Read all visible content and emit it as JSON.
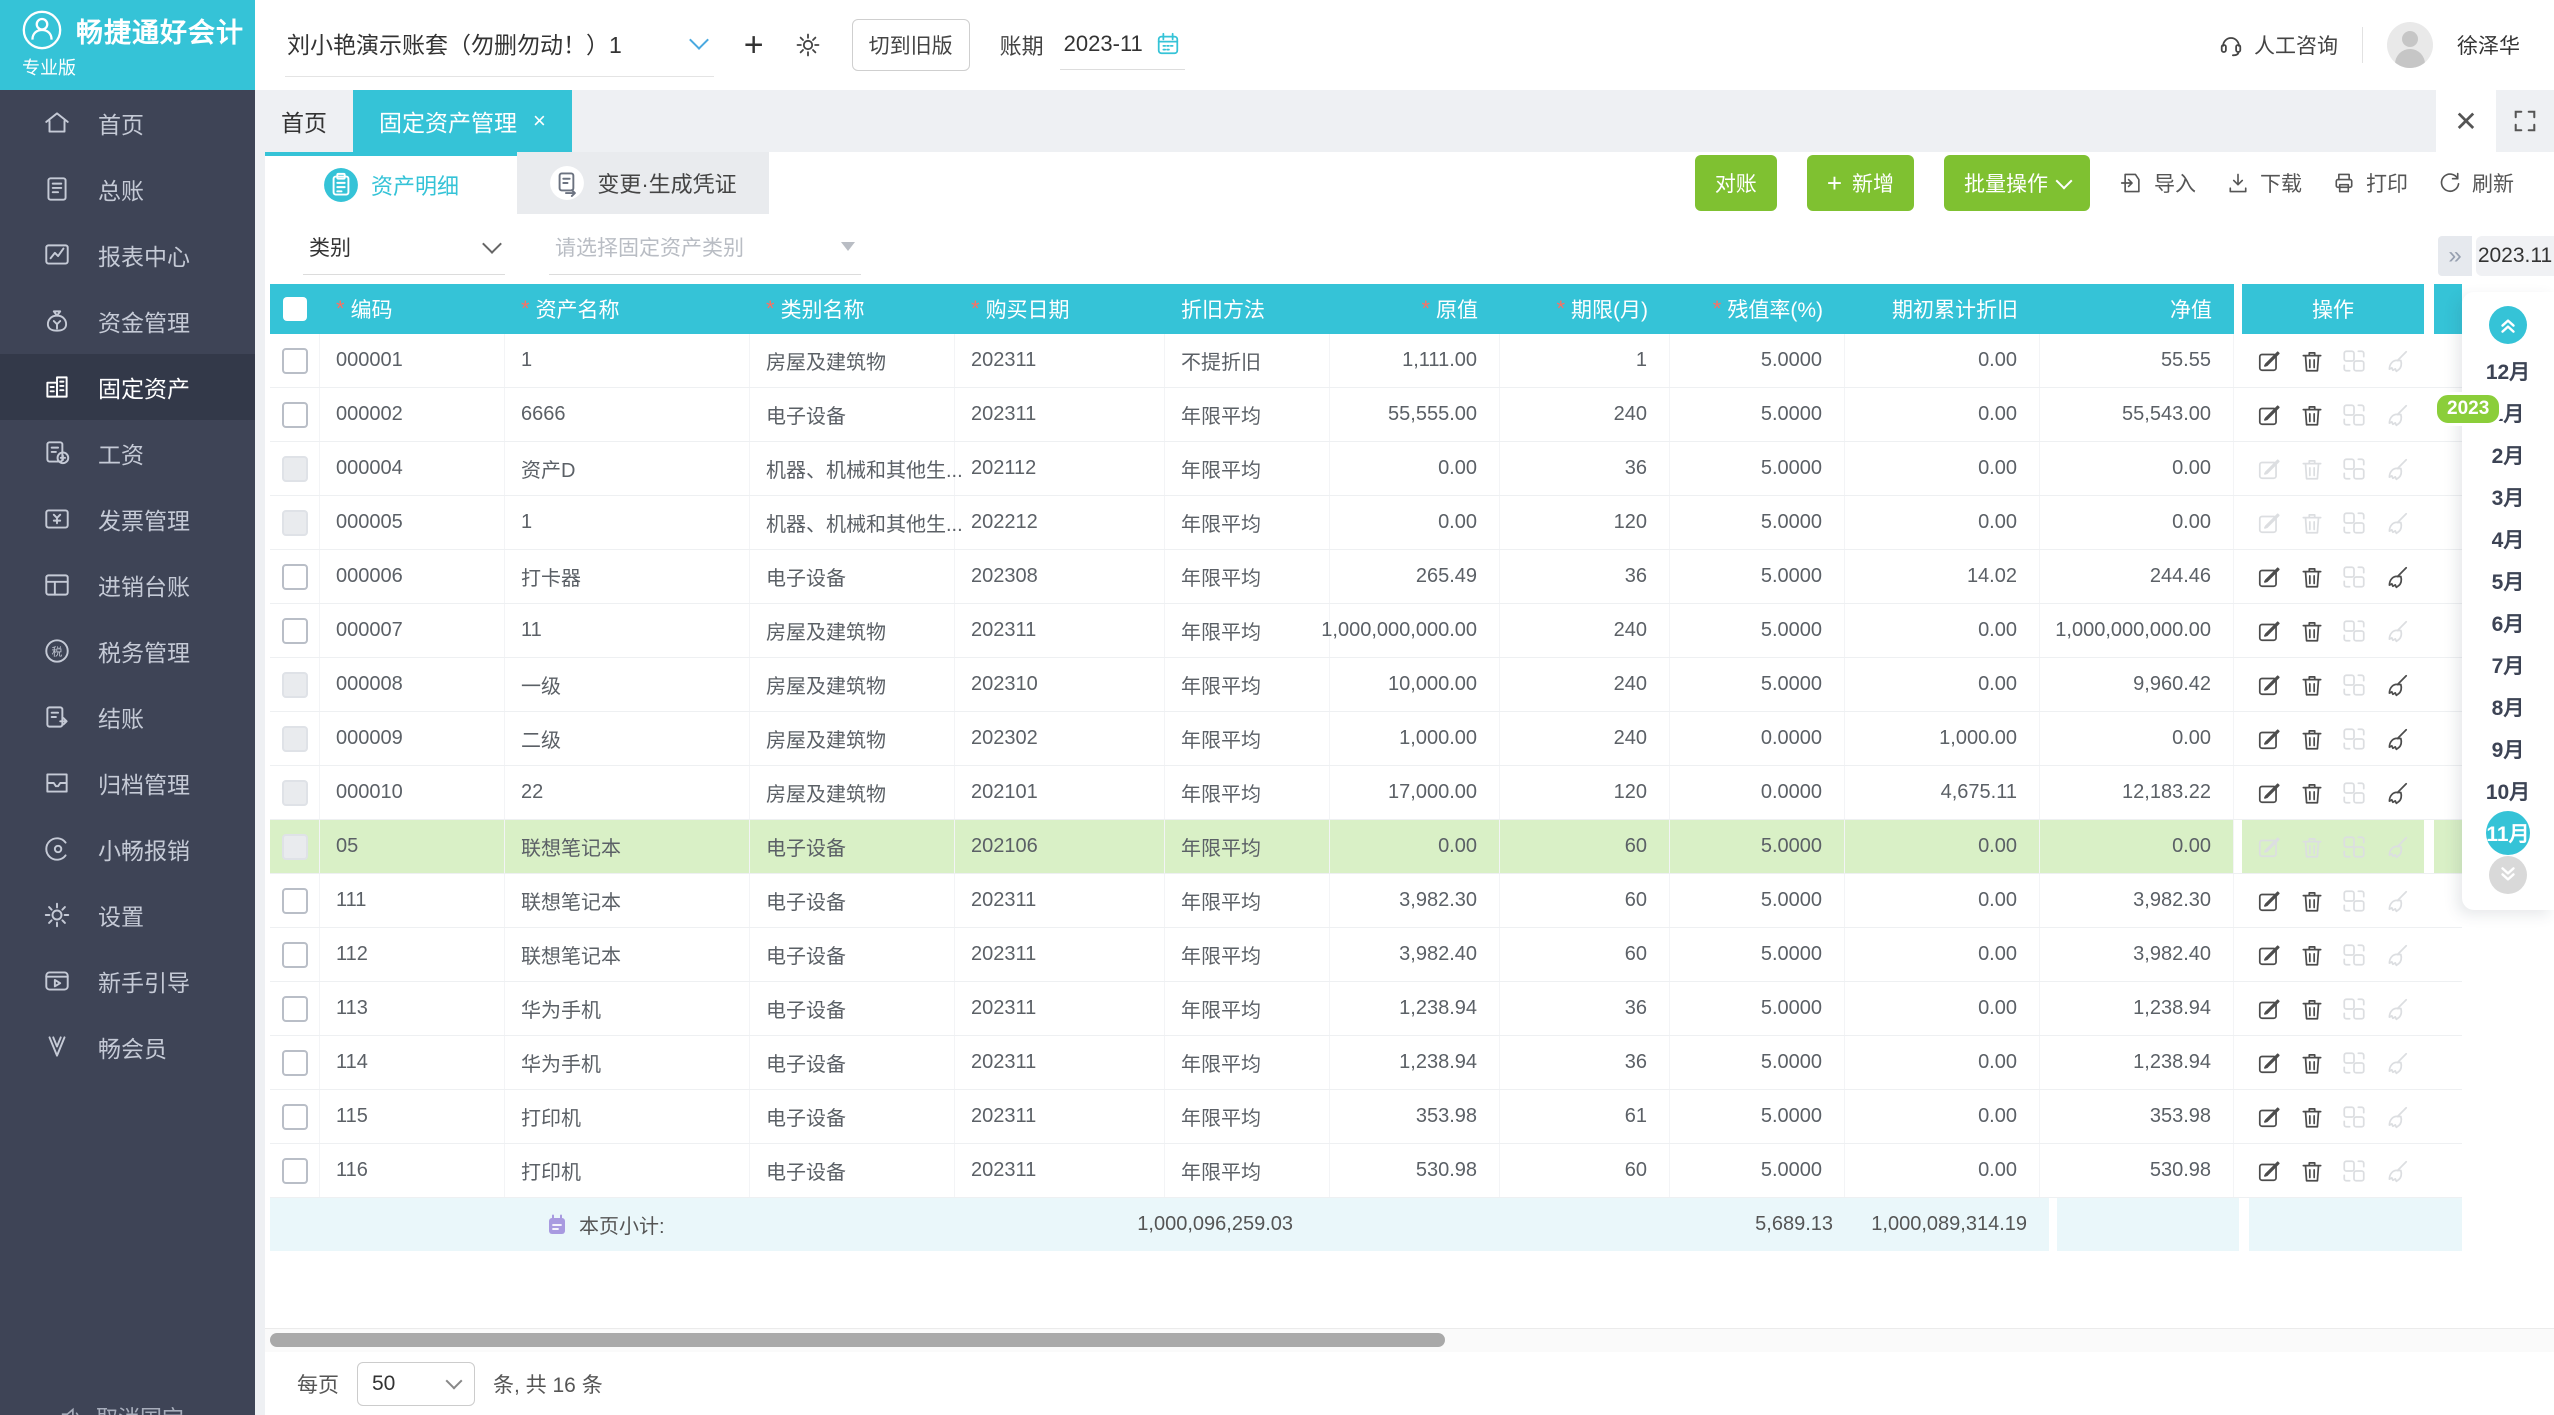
{
  "theme": {
    "accent": "#35c3d7",
    "green": "#7fc131",
    "sidebar_bg": "#3e4456",
    "sidebar_active": "#333949",
    "asterisk": "#ff6f61",
    "row_highlight": "#d9f0c6",
    "summary_bg": "#eaf7fa",
    "badge_green": "#8bce3a"
  },
  "topbar": {
    "logo_title": "畅捷通好会计",
    "logo_subtitle": "专业版",
    "account_set": "刘小艳演示账套（勿删勿动！）1",
    "switch_old": "切到旧版",
    "period_label": "账期",
    "period_value": "2023-11",
    "support": "人工咨询",
    "username": "徐泽华"
  },
  "tabs": {
    "home": "首页",
    "active_tab": "固定资产管理",
    "close": "×",
    "window_close": "✕"
  },
  "subtabs": [
    {
      "label": "资产明细",
      "icon": "asset-detail-icon",
      "active": true
    },
    {
      "label": "变更·生成凭证",
      "icon": "voucher-change-icon",
      "active": false
    }
  ],
  "toolbar": {
    "buttons": [
      {
        "label": "对账",
        "plus": false,
        "caret": false
      },
      {
        "label": "新增",
        "plus": true,
        "caret": false
      },
      {
        "label": "批量操作",
        "plus": false,
        "caret": true
      }
    ],
    "links": [
      {
        "label": "导入",
        "icon": "import-icon"
      },
      {
        "label": "下载",
        "icon": "download-icon"
      },
      {
        "label": "打印",
        "icon": "print-icon"
      },
      {
        "label": "刷新",
        "icon": "refresh-icon"
      }
    ]
  },
  "filter": {
    "category_label": "类别",
    "asset_placeholder": "请选择固定资产类别"
  },
  "sidebar": {
    "items": [
      {
        "label": "首页",
        "icon": "home-icon",
        "active": false
      },
      {
        "label": "总账",
        "icon": "general-ledger-icon",
        "active": false
      },
      {
        "label": "报表中心",
        "icon": "report-center-icon",
        "active": false
      },
      {
        "label": "资金管理",
        "icon": "funds-icon",
        "active": false
      },
      {
        "label": "固定资产",
        "icon": "fixed-assets-icon",
        "active": true
      },
      {
        "label": "工资",
        "icon": "salary-icon",
        "active": false
      },
      {
        "label": "发票管理",
        "icon": "invoice-icon",
        "active": false
      },
      {
        "label": "进销台账",
        "icon": "purchase-sales-icon",
        "active": false
      },
      {
        "label": "税务管理",
        "icon": "tax-icon",
        "active": false
      },
      {
        "label": "结账",
        "icon": "closing-icon",
        "active": false
      },
      {
        "label": "归档管理",
        "icon": "archive-icon",
        "active": false
      },
      {
        "label": "小畅报销",
        "icon": "reimburse-icon",
        "active": false
      },
      {
        "label": "设置",
        "icon": "settings-icon",
        "active": false
      },
      {
        "label": "新手引导",
        "icon": "guide-icon",
        "active": false
      },
      {
        "label": "畅会员",
        "icon": "member-icon",
        "active": false
      }
    ],
    "announcement": "取消国宝"
  },
  "table": {
    "columns": [
      {
        "key": "code",
        "label": "编码",
        "required": true
      },
      {
        "key": "name",
        "label": "资产名称",
        "required": true
      },
      {
        "key": "category",
        "label": "类别名称",
        "required": true
      },
      {
        "key": "purchase_date",
        "label": "购买日期",
        "required": true
      },
      {
        "key": "method",
        "label": "折旧方法",
        "required": false
      },
      {
        "key": "original_value",
        "label": "原值",
        "required": true
      },
      {
        "key": "period_months",
        "label": "期限(月)",
        "required": true
      },
      {
        "key": "residual_rate",
        "label": "残值率(%)",
        "required": true
      },
      {
        "key": "initial_depreciation",
        "label": "期初累计折旧",
        "required": false
      },
      {
        "key": "net_value",
        "label": "净值",
        "required": false
      },
      {
        "key": "actions",
        "label": "操作",
        "required": false
      }
    ],
    "rows": [
      {
        "code": "000001",
        "name": "1",
        "category": "房屋及建筑物",
        "purchase_date": "202311",
        "method": "不提折旧",
        "original_value": "1,111.00",
        "period_months": "1",
        "residual_rate": "5.0000",
        "initial_depreciation": "0.00",
        "net_value": "55.55",
        "checkbox": "enabled",
        "highlight": false,
        "ops": {
          "edit": true,
          "delete": true,
          "transform": false,
          "clean": false
        }
      },
      {
        "code": "000002",
        "name": "6666",
        "category": "电子设备",
        "purchase_date": "202311",
        "method": "年限平均",
        "original_value": "55,555.00",
        "period_months": "240",
        "residual_rate": "5.0000",
        "initial_depreciation": "0.00",
        "net_value": "55,543.00",
        "checkbox": "enabled",
        "highlight": false,
        "ops": {
          "edit": true,
          "delete": true,
          "transform": false,
          "clean": false
        }
      },
      {
        "code": "000004",
        "name": "资产D",
        "category": "机器、机械和其他生...",
        "purchase_date": "202112",
        "method": "年限平均",
        "original_value": "0.00",
        "period_months": "36",
        "residual_rate": "5.0000",
        "initial_depreciation": "0.00",
        "net_value": "0.00",
        "checkbox": "disabled",
        "highlight": false,
        "ops": {
          "edit": false,
          "delete": false,
          "transform": false,
          "clean": false
        }
      },
      {
        "code": "000005",
        "name": "1",
        "category": "机器、机械和其他生...",
        "purchase_date": "202212",
        "method": "年限平均",
        "original_value": "0.00",
        "period_months": "120",
        "residual_rate": "5.0000",
        "initial_depreciation": "0.00",
        "net_value": "0.00",
        "checkbox": "disabled",
        "highlight": false,
        "ops": {
          "edit": false,
          "delete": false,
          "transform": false,
          "clean": false
        }
      },
      {
        "code": "000006",
        "name": "打卡器",
        "category": "电子设备",
        "purchase_date": "202308",
        "method": "年限平均",
        "original_value": "265.49",
        "period_months": "36",
        "residual_rate": "5.0000",
        "initial_depreciation": "14.02",
        "net_value": "244.46",
        "checkbox": "enabled",
        "highlight": false,
        "ops": {
          "edit": true,
          "delete": true,
          "transform": false,
          "clean": true
        }
      },
      {
        "code": "000007",
        "name": "11",
        "category": "房屋及建筑物",
        "purchase_date": "202311",
        "method": "年限平均",
        "original_value": "1,000,000,000.00",
        "period_months": "240",
        "residual_rate": "5.0000",
        "initial_depreciation": "0.00",
        "net_value": "1,000,000,000.00",
        "checkbox": "enabled",
        "highlight": false,
        "ops": {
          "edit": true,
          "delete": true,
          "transform": false,
          "clean": false
        }
      },
      {
        "code": "000008",
        "name": "一级",
        "category": "房屋及建筑物",
        "purchase_date": "202310",
        "method": "年限平均",
        "original_value": "10,000.00",
        "period_months": "240",
        "residual_rate": "5.0000",
        "initial_depreciation": "0.00",
        "net_value": "9,960.42",
        "checkbox": "disabled",
        "highlight": false,
        "ops": {
          "edit": true,
          "delete": true,
          "transform": false,
          "clean": true
        }
      },
      {
        "code": "000009",
        "name": "二级",
        "category": "房屋及建筑物",
        "purchase_date": "202302",
        "method": "年限平均",
        "original_value": "1,000.00",
        "period_months": "240",
        "residual_rate": "0.0000",
        "initial_depreciation": "1,000.00",
        "net_value": "0.00",
        "checkbox": "disabled",
        "highlight": false,
        "ops": {
          "edit": true,
          "delete": true,
          "transform": false,
          "clean": true
        }
      },
      {
        "code": "000010",
        "name": "22",
        "category": "房屋及建筑物",
        "purchase_date": "202101",
        "method": "年限平均",
        "original_value": "17,000.00",
        "period_months": "120",
        "residual_rate": "0.0000",
        "initial_depreciation": "4,675.11",
        "net_value": "12,183.22",
        "checkbox": "disabled",
        "highlight": false,
        "ops": {
          "edit": true,
          "delete": true,
          "transform": false,
          "clean": true
        }
      },
      {
        "code": "05",
        "name": "联想笔记本",
        "category": "电子设备",
        "purchase_date": "202106",
        "method": "年限平均",
        "original_value": "0.00",
        "period_months": "60",
        "residual_rate": "5.0000",
        "initial_depreciation": "0.00",
        "net_value": "0.00",
        "checkbox": "disabled",
        "highlight": true,
        "ops": {
          "edit": false,
          "delete": false,
          "transform": false,
          "clean": false
        }
      },
      {
        "code": "111",
        "name": "联想笔记本",
        "category": "电子设备",
        "purchase_date": "202311",
        "method": "年限平均",
        "original_value": "3,982.30",
        "period_months": "60",
        "residual_rate": "5.0000",
        "initial_depreciation": "0.00",
        "net_value": "3,982.30",
        "checkbox": "enabled",
        "highlight": false,
        "ops": {
          "edit": true,
          "delete": true,
          "transform": false,
          "clean": false
        }
      },
      {
        "code": "112",
        "name": "联想笔记本",
        "category": "电子设备",
        "purchase_date": "202311",
        "method": "年限平均",
        "original_value": "3,982.40",
        "period_months": "60",
        "residual_rate": "5.0000",
        "initial_depreciation": "0.00",
        "net_value": "3,982.40",
        "checkbox": "enabled",
        "highlight": false,
        "ops": {
          "edit": true,
          "delete": true,
          "transform": false,
          "clean": false
        }
      },
      {
        "code": "113",
        "name": "华为手机",
        "category": "电子设备",
        "purchase_date": "202311",
        "method": "年限平均",
        "original_value": "1,238.94",
        "period_months": "36",
        "residual_rate": "5.0000",
        "initial_depreciation": "0.00",
        "net_value": "1,238.94",
        "checkbox": "enabled",
        "highlight": false,
        "ops": {
          "edit": true,
          "delete": true,
          "transform": false,
          "clean": false
        }
      },
      {
        "code": "114",
        "name": "华为手机",
        "category": "电子设备",
        "purchase_date": "202311",
        "method": "年限平均",
        "original_value": "1,238.94",
        "period_months": "36",
        "residual_rate": "5.0000",
        "initial_depreciation": "0.00",
        "net_value": "1,238.94",
        "checkbox": "enabled",
        "highlight": false,
        "ops": {
          "edit": true,
          "delete": true,
          "transform": false,
          "clean": false
        }
      },
      {
        "code": "115",
        "name": "打印机",
        "category": "电子设备",
        "purchase_date": "202311",
        "method": "年限平均",
        "original_value": "353.98",
        "period_months": "61",
        "residual_rate": "5.0000",
        "initial_depreciation": "0.00",
        "net_value": "353.98",
        "checkbox": "enabled",
        "highlight": false,
        "ops": {
          "edit": true,
          "delete": true,
          "transform": false,
          "clean": false
        }
      },
      {
        "code": "116",
        "name": "打印机",
        "category": "电子设备",
        "purchase_date": "202311",
        "method": "年限平均",
        "original_value": "530.98",
        "period_months": "60",
        "residual_rate": "5.0000",
        "initial_depreciation": "0.00",
        "net_value": "530.98",
        "checkbox": "enabled",
        "highlight": false,
        "ops": {
          "edit": true,
          "delete": true,
          "transform": false,
          "clean": false
        }
      }
    ],
    "summary": {
      "label": "本页小计:",
      "original_value": "1,000,096,259.03",
      "initial_depreciation": "5,689.13",
      "net_value": "1,000,089,314.19"
    }
  },
  "pagination": {
    "per_page_label": "每页",
    "per_page_value": "50",
    "total_suffix": "条, 共 16 条"
  },
  "calendar": {
    "current": "2023.11",
    "collapse": "»",
    "year_badge": "2023",
    "months": [
      "12月",
      "1月",
      "2月",
      "3月",
      "4月",
      "5月",
      "6月",
      "7月",
      "8月",
      "9月",
      "10月",
      "11月"
    ],
    "selected_month": "11月"
  }
}
